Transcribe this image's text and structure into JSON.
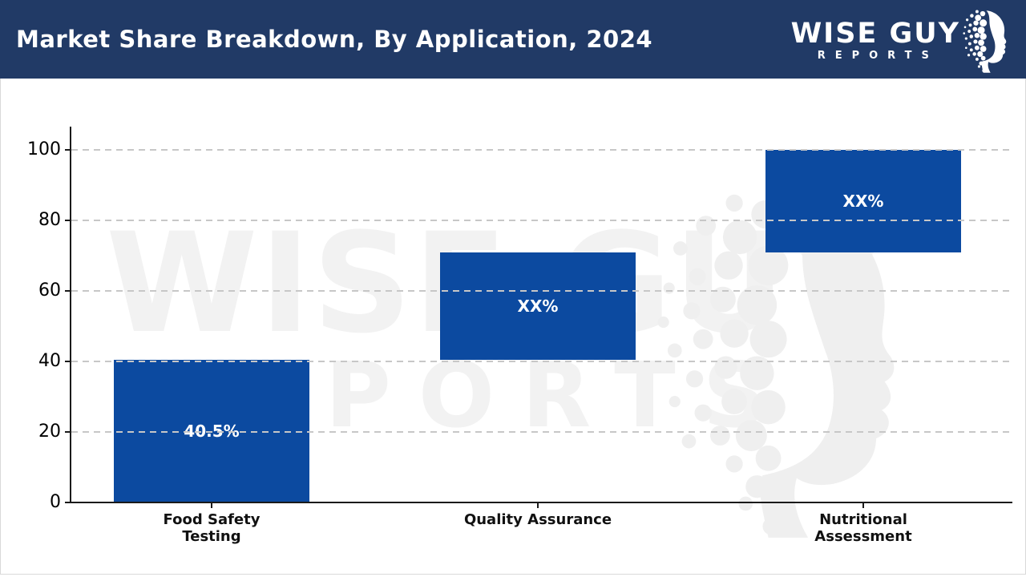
{
  "header": {
    "title": "Market Share Breakdown, By Application, 2024",
    "bg_color": "#213a66",
    "logo": {
      "line1": "WISE GUY",
      "line2": "REPORTS"
    }
  },
  "watermark": {
    "line1": "WISE GUY",
    "line2": "REPORTS"
  },
  "chart_data": {
    "type": "bar",
    "subtype": "stacked-waterfall-percentage",
    "title": "Market Share Breakdown, By Application, 2024",
    "categories": [
      "Food Safety Testing",
      "Quality Assurance",
      "Nutritional Assessment"
    ],
    "category_lines": [
      [
        "Food Safety",
        "Testing"
      ],
      [
        "Quality Assurance"
      ],
      [
        "Nutritional",
        "Assessment"
      ]
    ],
    "segments": [
      {
        "category": "Food Safety Testing",
        "start": 0,
        "end": 40.5,
        "label": "40.5%"
      },
      {
        "category": "Quality Assurance",
        "start": 40.5,
        "end": 71,
        "label": "XX%"
      },
      {
        "category": "Nutritional Assessment",
        "start": 71,
        "end": 100,
        "label": "XX%"
      }
    ],
    "yticks": [
      0,
      20,
      40,
      60,
      80,
      100
    ],
    "ylim": [
      0,
      100
    ],
    "xlabel": "",
    "ylabel": "",
    "legend": null,
    "grid": "horizontal-dashed",
    "bar_color": "#0c4aa0",
    "bar_label_color": "#ffffff"
  }
}
